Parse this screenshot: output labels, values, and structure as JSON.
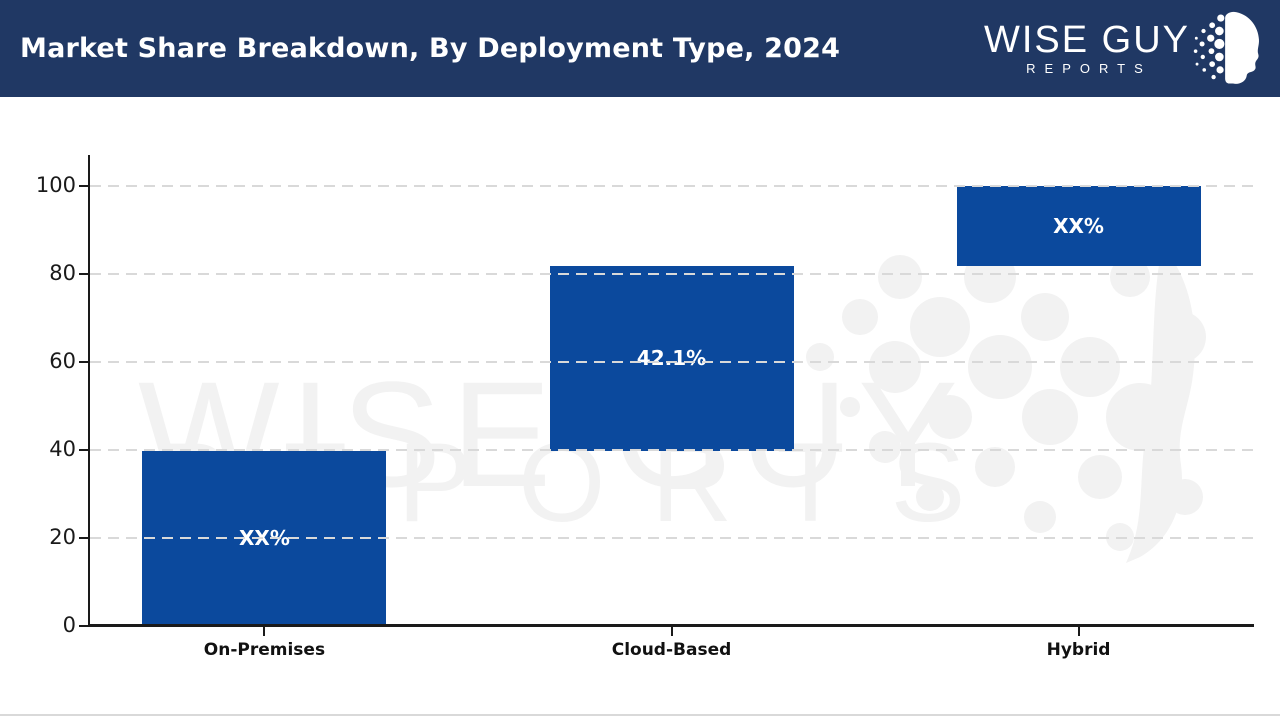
{
  "header": {
    "title": "Market Share Breakdown, By Deployment Type, 2024",
    "logo": {
      "wordmark": "WISE GUY",
      "subtext": "REPORTS"
    }
  },
  "watermark": {
    "wordmark": "WISE GUY",
    "subtext": "REPORTS"
  },
  "chart_data": {
    "type": "bar",
    "subtype": "waterfall",
    "title": "Market Share Breakdown, By Deployment Type, 2024",
    "xlabel": "",
    "ylabel": "",
    "categories": [
      "On-Premises",
      "Cloud-Based",
      "Hybrid"
    ],
    "segments": [
      {
        "category": "On-Premises",
        "start": 0,
        "end": 39.8,
        "value": 39.8,
        "value_label": "XX%"
      },
      {
        "category": "Cloud-Based",
        "start": 39.8,
        "end": 81.9,
        "value": 42.1,
        "value_label": "42.1%"
      },
      {
        "category": "Hybrid",
        "start": 81.9,
        "end": 100,
        "value": 18.1,
        "value_label": "XX%"
      }
    ],
    "ylim": [
      0,
      100
    ],
    "yticks": [
      0,
      20,
      40,
      60,
      80,
      100
    ],
    "grid": "horizontal-dashed",
    "legend": "none",
    "colors": {
      "bar": "#0B499D",
      "bar_label": "#FFFFFF",
      "grid": "#D9D9D9",
      "axis": "#1A1A1A",
      "header_bg": "#203864",
      "watermark": "#F2F2F2"
    }
  }
}
